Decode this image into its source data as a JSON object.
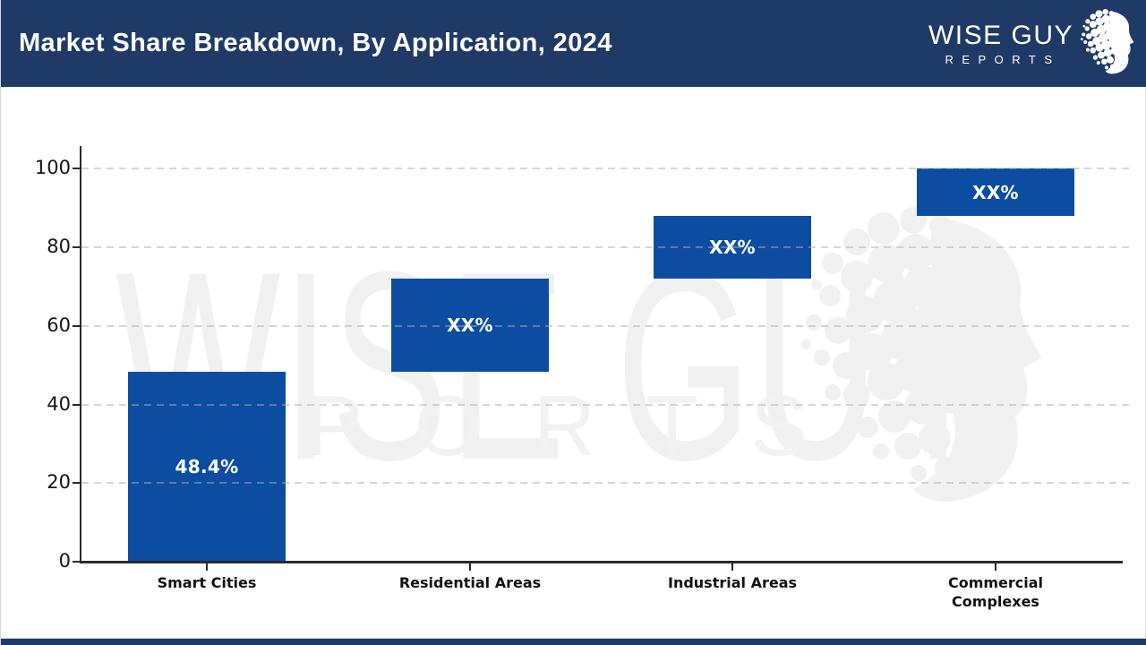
{
  "header": {
    "title": "Market Share Breakdown, By Application, 2024",
    "logo": {
      "line1": "WISE GUY",
      "line2": "REPORTS"
    }
  },
  "watermark": {
    "line1": "WISE GUY",
    "line2": "PORTS"
  },
  "chart_data": {
    "type": "bar",
    "subtype": "waterfall",
    "title": "Market Share Breakdown, By Application, 2024",
    "categories": [
      "Smart Cities",
      "Residential Areas",
      "Industrial Areas",
      "Commercial Complexes"
    ],
    "segments": [
      {
        "category": "Smart Cities",
        "start": 0,
        "end": 48.4,
        "label": "48.4%"
      },
      {
        "category": "Residential Areas",
        "start": 48.4,
        "end": 72,
        "label": "XX%"
      },
      {
        "category": "Industrial Areas",
        "start": 72,
        "end": 88,
        "label": "XX%"
      },
      {
        "category": "Commercial Complexes",
        "start": 88,
        "end": 100,
        "label": "XX%"
      }
    ],
    "y_ticks": [
      0,
      20,
      40,
      60,
      80,
      100
    ],
    "ylim": [
      0,
      105
    ],
    "grid": "horizontal-dashed",
    "legend": "none",
    "bar_color": "#0c4da2",
    "bar_label_color": "#ffffff"
  },
  "colors": {
    "header_bg": "#203a67",
    "footer_bg": "#203a67",
    "bar": "#0c4da2",
    "axis": "#2b2b2b",
    "gridline": "#e0e0e0",
    "watermark": "#f1f1f1",
    "text": "#111111"
  }
}
